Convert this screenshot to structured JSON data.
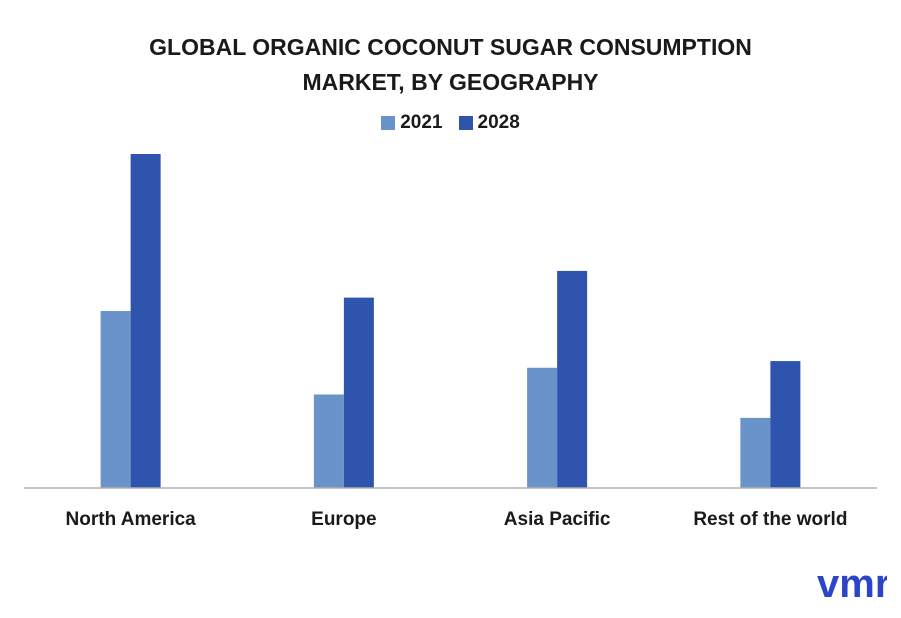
{
  "chart_data": {
    "type": "bar",
    "title_lines": [
      "GLOBAL ORGANIC COCONUT SUGAR CONSUMPTION",
      "MARKET, BY GEOGRAPHY"
    ],
    "categories": [
      "North America",
      "Europe",
      "Asia Pacific",
      "Rest of the world"
    ],
    "series": [
      {
        "name": "2021",
        "color": "#6a93ca",
        "values": [
          5.3,
          2.8,
          3.6,
          2.1
        ]
      },
      {
        "name": "2028",
        "color": "#2f54ae",
        "values": [
          10.0,
          5.7,
          6.5,
          3.8
        ]
      }
    ],
    "ylim": [
      0,
      10
    ],
    "legend_position": "top-center",
    "grid": false
  },
  "logo": {
    "text": "vmr",
    "color": "#2b45c8",
    "icon": "vmr-logo-icon"
  }
}
